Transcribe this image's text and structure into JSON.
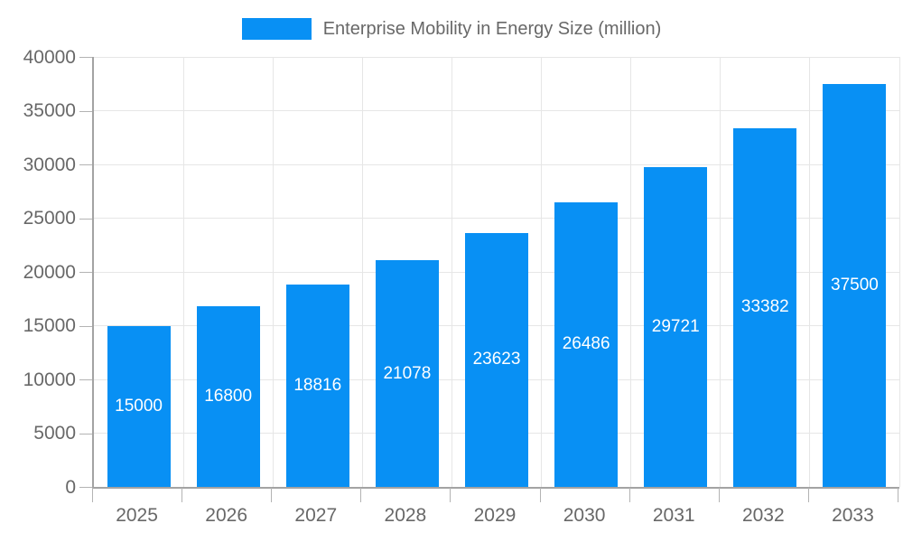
{
  "legend": {
    "label": "Enterprise Mobility in Energy Size (million)"
  },
  "colors": {
    "bar": "#0890f4",
    "grid": "#e6e6e6",
    "axis": "#a3a3a3",
    "tick": "#b3b3b3",
    "tick_label": "#686868",
    "bar_label": "#ffffff"
  },
  "chart_data": {
    "type": "bar",
    "title": "Enterprise Mobility in Energy Size (million)",
    "categories": [
      "2025",
      "2026",
      "2027",
      "2028",
      "2029",
      "2030",
      "2031",
      "2032",
      "2033"
    ],
    "values": [
      15000,
      16800,
      18816,
      21078,
      23623,
      26486,
      29721,
      33382,
      37500
    ],
    "xlabel": "",
    "ylabel": "",
    "ylim": [
      0,
      40000
    ],
    "ytick_step": 5000,
    "yticks": [
      0,
      5000,
      10000,
      15000,
      20000,
      25000,
      30000,
      35000,
      40000
    ],
    "grid": true,
    "legend_position": "top",
    "bar_label_position": "center",
    "bar_label_color": "white"
  }
}
